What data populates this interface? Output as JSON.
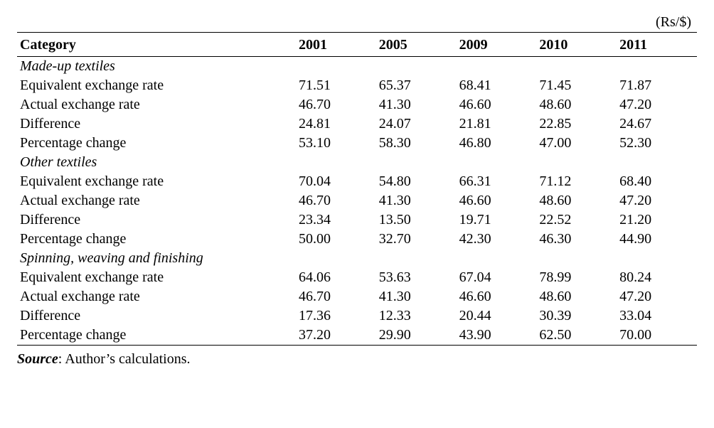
{
  "unit": "(Rs/$)",
  "headers": {
    "category": "Category",
    "y2001": "2001",
    "y2005": "2005",
    "y2009": "2009",
    "y2010": "2010",
    "y2011": "2011"
  },
  "sections": [
    {
      "title": "Made-up textiles",
      "rows": [
        {
          "label": "Equivalent exchange rate",
          "v": [
            "71.51",
            "65.37",
            "68.41",
            "71.45",
            "71.87"
          ]
        },
        {
          "label": "Actual exchange rate",
          "v": [
            "46.70",
            "41.30",
            "46.60",
            "48.60",
            "47.20"
          ]
        },
        {
          "label": "Difference",
          "v": [
            "24.81",
            "24.07",
            "21.81",
            "22.85",
            "24.67"
          ]
        },
        {
          "label": "Percentage change",
          "v": [
            "53.10",
            "58.30",
            "46.80",
            "47.00",
            "52.30"
          ]
        }
      ]
    },
    {
      "title": "Other textiles",
      "rows": [
        {
          "label": "Equivalent exchange rate",
          "v": [
            "70.04",
            "54.80",
            "66.31",
            "71.12",
            "68.40"
          ]
        },
        {
          "label": "Actual exchange rate",
          "v": [
            "46.70",
            "41.30",
            "46.60",
            "48.60",
            "47.20"
          ]
        },
        {
          "label": "Difference",
          "v": [
            "23.34",
            "13.50",
            "19.71",
            "22.52",
            "21.20"
          ]
        },
        {
          "label": "Percentage change",
          "v": [
            "50.00",
            "32.70",
            "42.30",
            "46.30",
            "44.90"
          ]
        }
      ]
    },
    {
      "title": "Spinning, weaving and finishing",
      "rows": [
        {
          "label": "Equivalent exchange rate",
          "v": [
            "64.06",
            "53.63",
            "67.04",
            "78.99",
            "80.24"
          ]
        },
        {
          "label": "Actual exchange rate",
          "v": [
            "46.70",
            "41.30",
            "46.60",
            "48.60",
            "47.20"
          ]
        },
        {
          "label": "Difference",
          "v": [
            "17.36",
            "12.33",
            "20.44",
            "30.39",
            "33.04"
          ]
        },
        {
          "label": "Percentage change",
          "v": [
            "37.20",
            "29.90",
            "43.90",
            "62.50",
            "70.00"
          ]
        }
      ]
    }
  ],
  "source_label": "Source",
  "source_text": ": Author’s calculations."
}
